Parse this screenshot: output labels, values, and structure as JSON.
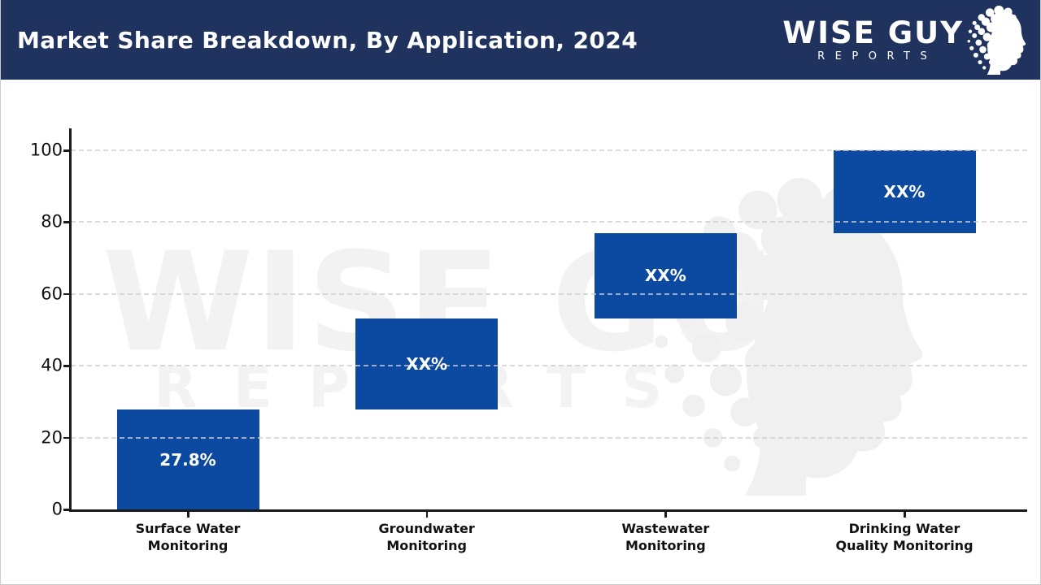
{
  "header": {
    "title": "Market Share Breakdown, By Application, 2024",
    "background_color": "#20335e",
    "logo": {
      "name": "WISE GUY",
      "subtitle": "REPORTS"
    }
  },
  "watermark": {
    "name": "WISE GUY",
    "subtitle": "REPORTS"
  },
  "chart_data": {
    "type": "bar",
    "subtype": "waterfall (floating cumulative segments)",
    "title": "Market Share Breakdown, By Application, 2024",
    "categories": [
      "Surface Water Monitoring",
      "Groundwater Monitoring",
      "Wastewater Monitoring",
      "Drinking Water Quality Monitoring"
    ],
    "category_lines": [
      [
        "Surface Water",
        "Monitoring"
      ],
      [
        "Groundwater",
        "Monitoring"
      ],
      [
        "Wastewater",
        "Monitoring"
      ],
      [
        "Drinking Water",
        "Quality Monitoring"
      ]
    ],
    "segments": [
      {
        "category": "Surface Water Monitoring",
        "start": 0,
        "end": 27.8,
        "label": "27.8%"
      },
      {
        "category": "Groundwater Monitoring",
        "start": 27.8,
        "end": 53.2,
        "label": "XX%"
      },
      {
        "category": "Wastewater Monitoring",
        "start": 53.2,
        "end": 77,
        "label": "XX%"
      },
      {
        "category": "Drinking Water Quality Monitoring",
        "start": 77,
        "end": 100,
        "label": "XX%"
      }
    ],
    "y_ticks": [
      0,
      20,
      40,
      60,
      80,
      100
    ],
    "ylim": [
      0,
      106
    ],
    "xlabel": "",
    "ylabel": "",
    "grid": "horizontal dashed gridlines, drawn above bars",
    "legend": "none",
    "bar_color": "#0c49a1",
    "bar_label_color": "#ffffff",
    "axis_color": "#1a1a1a"
  }
}
